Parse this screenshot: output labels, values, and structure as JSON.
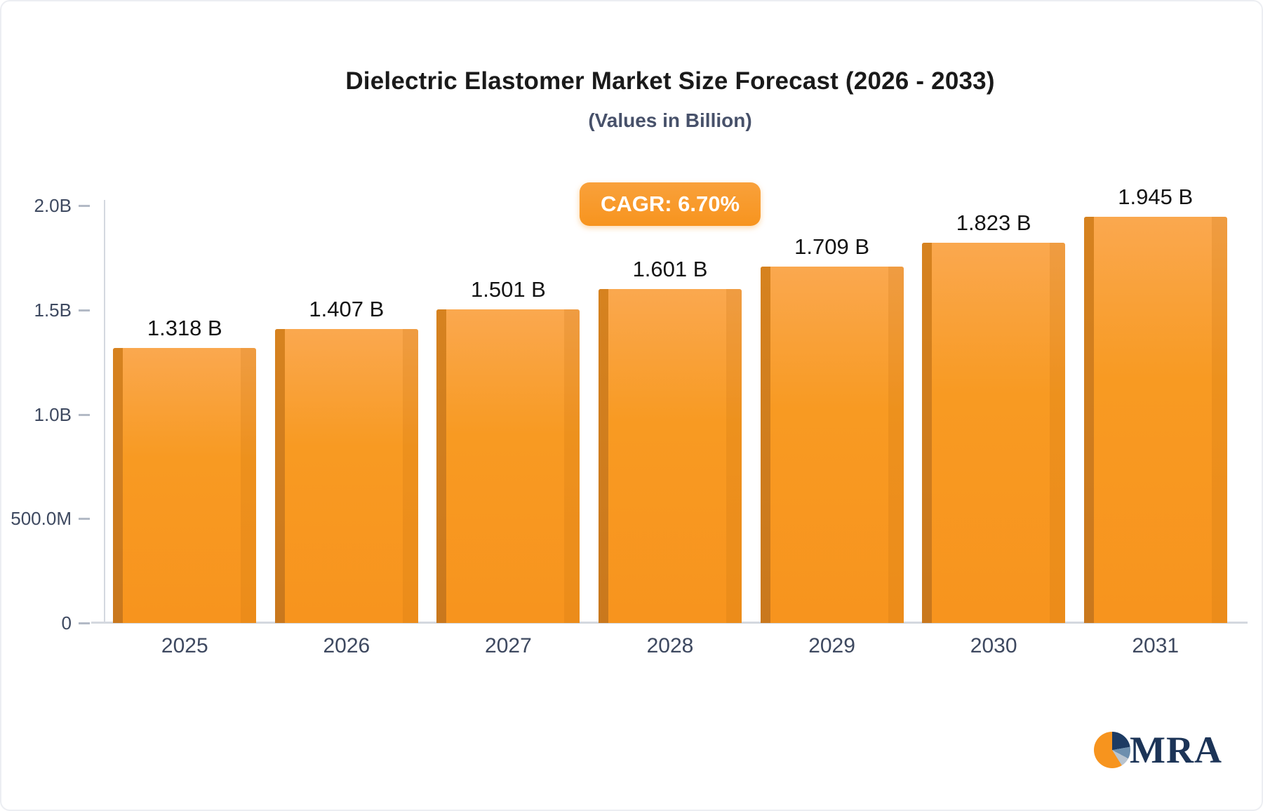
{
  "chart_data": {
    "type": "bar",
    "title": "Dielectric Elastomer Market Size Forecast (2026 - 2033)",
    "subtitle": "(Values in Billion)",
    "annotation": "CAGR: 6.70%",
    "categories": [
      "2025",
      "2026",
      "2027",
      "2028",
      "2029",
      "2030",
      "2031"
    ],
    "values": [
      1.318,
      1.407,
      1.501,
      1.601,
      1.709,
      1.823,
      1.945
    ],
    "value_labels": [
      "1.318 B",
      "1.407 B",
      "1.501 B",
      "1.601 B",
      "1.709 B",
      "1.823 B",
      "1.945 B"
    ],
    "xlabel": "",
    "ylabel": "",
    "ylim": [
      0,
      2.0
    ],
    "yticks": [
      {
        "value": 0,
        "label": "0"
      },
      {
        "value": 0.5,
        "label": "500.0M"
      },
      {
        "value": 1.0,
        "label": "1.0B"
      },
      {
        "value": 1.5,
        "label": "1.5B"
      },
      {
        "value": 2.0,
        "label": "2.0B"
      }
    ],
    "grid": false,
    "legend": false,
    "bar_color": "#F7941E",
    "bar_side_color": "#C9781D",
    "bar_highlight_color": "#FAA84F"
  },
  "logo": {
    "text": "MRA"
  },
  "colors": {
    "accent_orange": "#F7941E",
    "badge_text": "#FFFFFF",
    "axis_text": "#3E4960",
    "title_text": "#1A1A1A",
    "logo_navy": "#1C3457",
    "axis_line": "#D4D8DF",
    "background": "#FFFFFF"
  }
}
